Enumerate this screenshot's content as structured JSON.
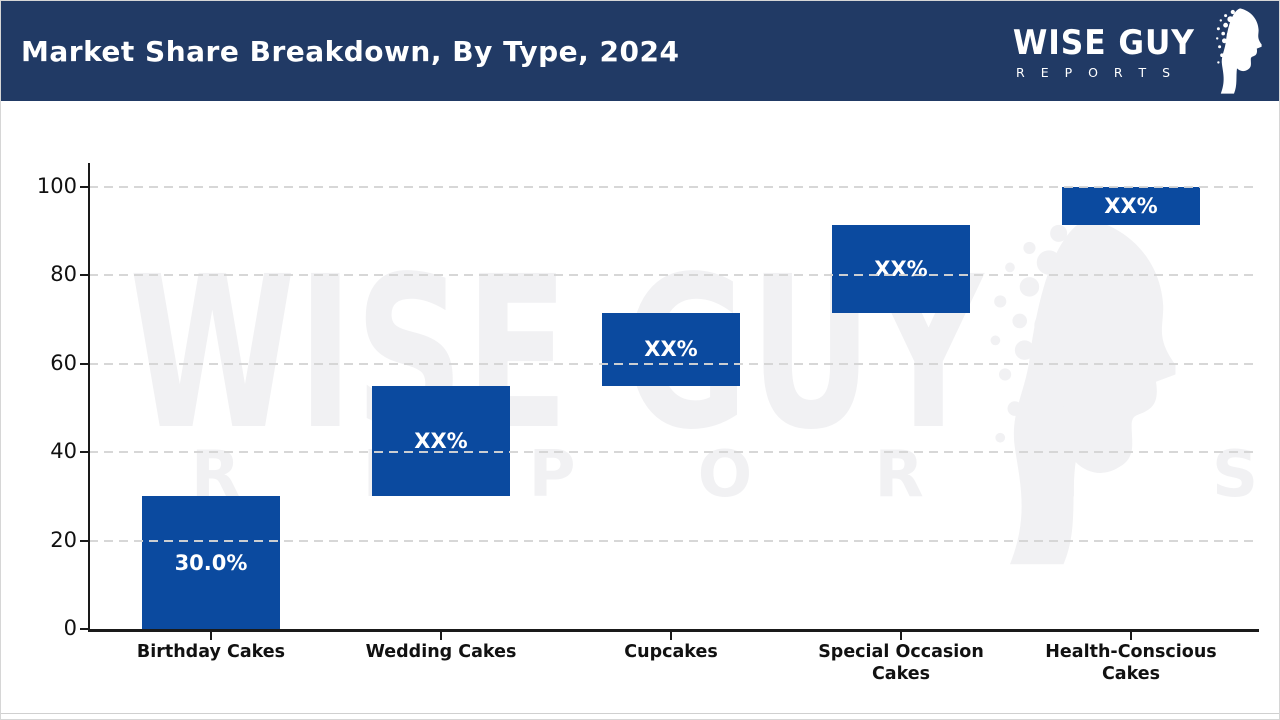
{
  "header": {
    "title": "Market Share Breakdown, By Type, 2024",
    "bg_color": "#213A65",
    "logo": {
      "name": "Wise Guy Reports",
      "line1": "WISE GUY",
      "line2": "R E P O R T S"
    }
  },
  "watermark": {
    "line1": "WISE GUY",
    "line2": "R E P O R T S"
  },
  "chart_data": {
    "type": "bar",
    "subtype": "waterfall",
    "title": "Market Share Breakdown, By Type, 2024",
    "xlabel": "",
    "ylabel": "",
    "categories": [
      "Birthday Cakes",
      "Wedding Cakes",
      "Cupcakes",
      "Special Occasion Cakes",
      "Health-Conscious Cakes"
    ],
    "segments": [
      {
        "category": "Birthday Cakes",
        "start": 0,
        "end": 30,
        "label": "30.0%"
      },
      {
        "category": "Wedding Cakes",
        "start": 30,
        "end": 55,
        "label": "XX%"
      },
      {
        "category": "Cupcakes",
        "start": 55,
        "end": 71.5,
        "label": "XX%"
      },
      {
        "category": "Special Occasion Cakes",
        "start": 71.5,
        "end": 91.5,
        "label": "XX%"
      },
      {
        "category": "Health-Conscious Cakes",
        "start": 91.5,
        "end": 100,
        "label": "XX%"
      }
    ],
    "yticks": [
      0,
      20,
      40,
      60,
      80,
      100
    ],
    "ylim": [
      0,
      105
    ],
    "grid": "horizontal-dashed",
    "legend": "none",
    "bar_color": "#0B4A9F",
    "bar_label_color": "#FFFFFF"
  }
}
